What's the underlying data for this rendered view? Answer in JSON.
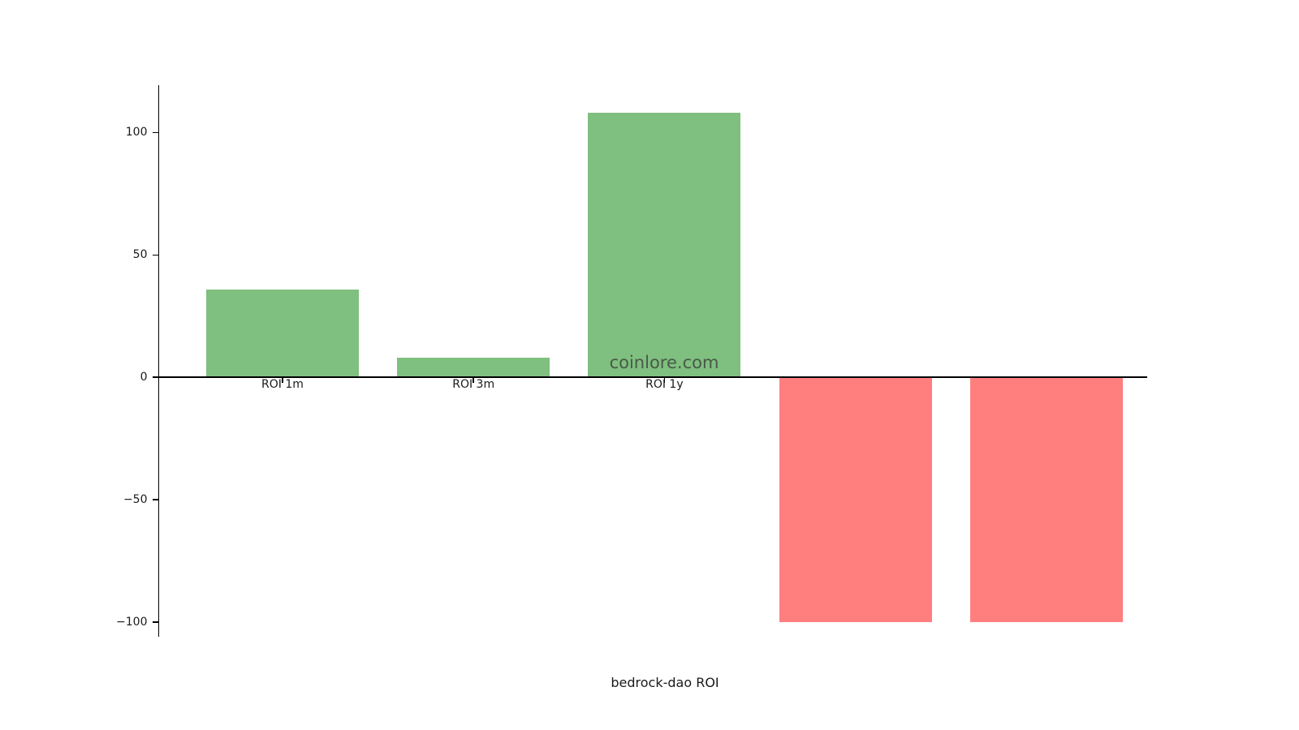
{
  "watermark": {
    "text": "coinlore.com",
    "color": "#373737"
  },
  "chart_data": {
    "type": "bar",
    "title": "bedrock-dao ROI",
    "categories": [
      "ROI 1m",
      "ROI 3m",
      "ROI 1y",
      "",
      ""
    ],
    "values": [
      36,
      8,
      108,
      -100,
      -100
    ],
    "bar_colors": [
      "#7fbf7f",
      "#7fbf7f",
      "#7fbf7f",
      "#ff7f7f",
      "#ff7f7f"
    ],
    "positive_color": "#7fbf7f",
    "negative_color": "#ff7f7f",
    "axis_color": "#000000",
    "yticks": [
      100,
      50,
      0,
      -50,
      -100
    ],
    "ylim": [
      -105.9,
      119.3
    ],
    "xlim": [
      -0.646,
      4.528
    ],
    "bar_width": 0.8,
    "grid": false,
    "legend": false
  }
}
